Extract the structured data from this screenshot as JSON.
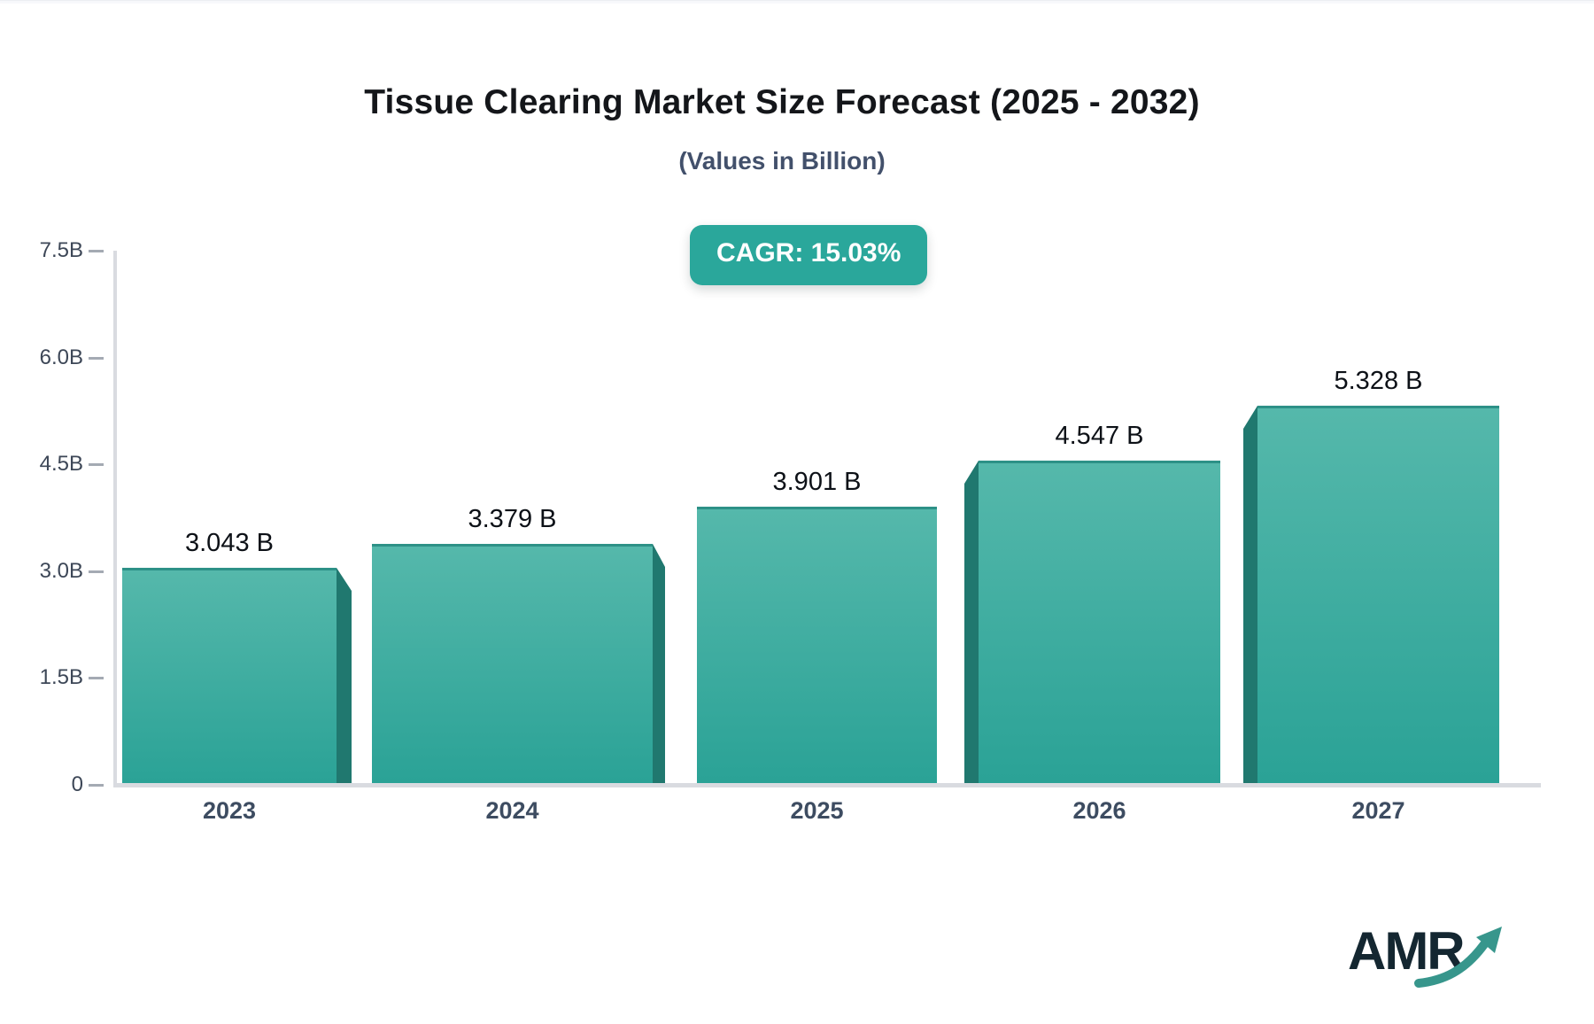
{
  "header": {
    "title": "Tissue Clearing Market Size Forecast (2025 - 2032)",
    "subtitle": "(Values in Billion)",
    "cagr_badge": "CAGR: 15.03%"
  },
  "chart_data": {
    "type": "bar",
    "title": "Tissue Clearing Market Size Forecast (2025 - 2032)",
    "subtitle": "(Values in Billion)",
    "cagr_text": "CAGR: 15.03%",
    "categories": [
      "2023",
      "2024",
      "2025",
      "2026",
      "2027"
    ],
    "values": [
      3.043,
      3.379,
      3.901,
      4.547,
      5.328
    ],
    "value_labels": [
      "3.043 B",
      "3.379 B",
      "3.901 B",
      "4.547 B",
      "5.328 B"
    ],
    "xlabel": "",
    "ylabel": "",
    "ylim": [
      0,
      7.5
    ],
    "yticks": [
      {
        "value": 0,
        "label": "0"
      },
      {
        "value": 1.5,
        "label": "1.5B"
      },
      {
        "value": 3.0,
        "label": "3.0B"
      },
      {
        "value": 4.5,
        "label": "4.5B"
      },
      {
        "value": 6.0,
        "label": "6.0B"
      },
      {
        "value": 7.5,
        "label": "7.5B"
      }
    ],
    "grid": false,
    "legend": false,
    "bar_style": "3d-teal-gradient",
    "legend_position": "none"
  },
  "colors": {
    "bar_face_top": "#55b8ab",
    "bar_face_bottom": "#2aa296",
    "bar_side": "#20786f",
    "bar_top_edge": "#2d9187",
    "badge_bg": "#2aa79b",
    "badge_text": "#ffffff",
    "axis_line": "#d9dbe0",
    "tick_text": "#3d4757",
    "title_text": "#14161a",
    "subtitle_text": "#42506b",
    "value_label_text": "#0d1117",
    "logo_text": "#142731",
    "logo_arrow": "#37968c"
  },
  "logo": {
    "text": "AMR"
  }
}
